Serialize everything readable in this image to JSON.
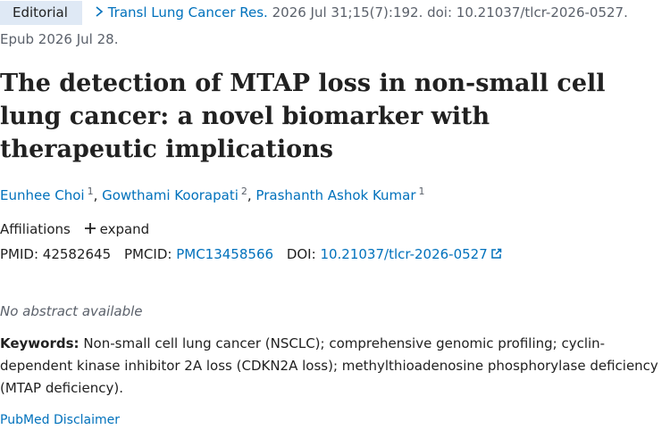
{
  "header": {
    "badge": "Editorial",
    "journal": "Transl Lung Cancer Res.",
    "citation": "2026 Jul 31;15(7):192. doi: 10.21037/tlcr-2026-0527.",
    "epub": "Epub 2026 Jul 28."
  },
  "title": "The detection of MTAP loss in non-small cell lung cancer: a novel biomarker with therapeutic implications",
  "authors": [
    {
      "name": "Eunhee Choi",
      "affiliation": "1"
    },
    {
      "name": "Gowthami Koorapati",
      "affiliation": "2"
    },
    {
      "name": "Prashanth Ashok Kumar",
      "affiliation": "1"
    }
  ],
  "affiliations": {
    "label": "Affiliations",
    "action": "expand"
  },
  "identifiers": {
    "pmid_label": "PMID:",
    "pmid": "42582645",
    "pmcid_label": "PMCID:",
    "pmcid": "PMC13458566",
    "doi_label": "DOI:",
    "doi": "10.21037/tlcr-2026-0527"
  },
  "abstract_note": "No abstract available",
  "keywords": {
    "label": "Keywords:",
    "text": "Non-small cell lung cancer (NSCLC); comprehensive genomic profiling; cyclin-dependent kinase inhibitor 2A loss (CDKN2A loss); methylthioadenosine phosphorylase deficiency (MTAP deficiency)."
  },
  "disclaimer": "PubMed Disclaimer"
}
